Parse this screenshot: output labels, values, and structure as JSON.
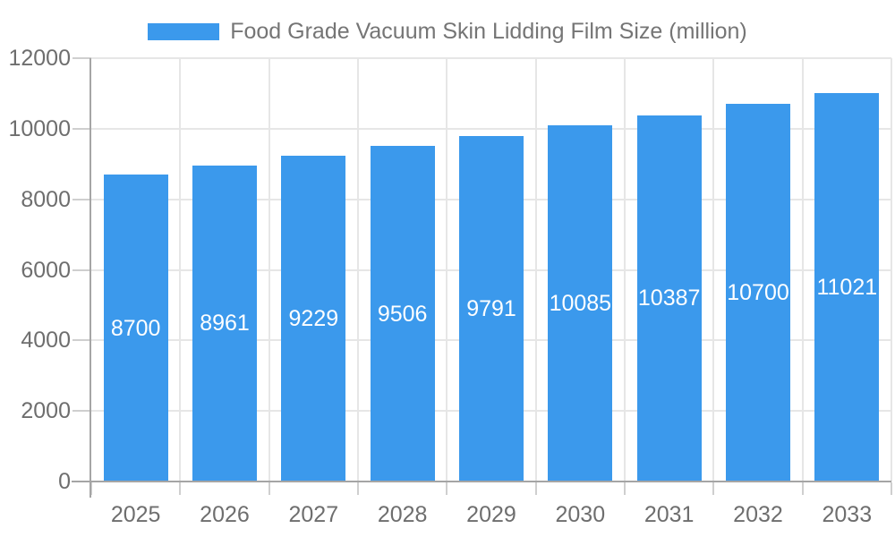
{
  "chart_data": {
    "type": "bar",
    "legend_label": "Food Grade Vacuum Skin Lidding Film Size (million)",
    "legend_position": "top",
    "categories": [
      "2025",
      "2026",
      "2027",
      "2028",
      "2029",
      "2030",
      "2031",
      "2032",
      "2033"
    ],
    "values": [
      8700,
      8961,
      9229,
      9506,
      9791,
      10085,
      10387,
      10700,
      11021
    ],
    "value_labels": [
      "8700",
      "8961",
      "9229",
      "9506",
      "9791",
      "10085",
      "10387",
      "10700",
      "11021"
    ],
    "value_labels_position": "center-of-bar",
    "xlabel": "",
    "ylabel": "",
    "ylim": [
      0,
      12000
    ],
    "yticks": [
      0,
      2000,
      4000,
      6000,
      8000,
      10000,
      12000
    ],
    "ytick_labels": [
      "0",
      "2000",
      "4000",
      "6000",
      "8000",
      "10000",
      "12000"
    ],
    "grid": "horizontal lines and vertical category-boundary lines",
    "colors": {
      "background": "#FFFFFF",
      "bar": "#3B99EC",
      "bar_label": "#FFFFFF",
      "gridline": "#E6E6E6",
      "tick": "#CFCFCF",
      "axis_line": "#A5A5A5",
      "axis_text": "#6E6E6E",
      "legend_text": "#757575"
    }
  }
}
